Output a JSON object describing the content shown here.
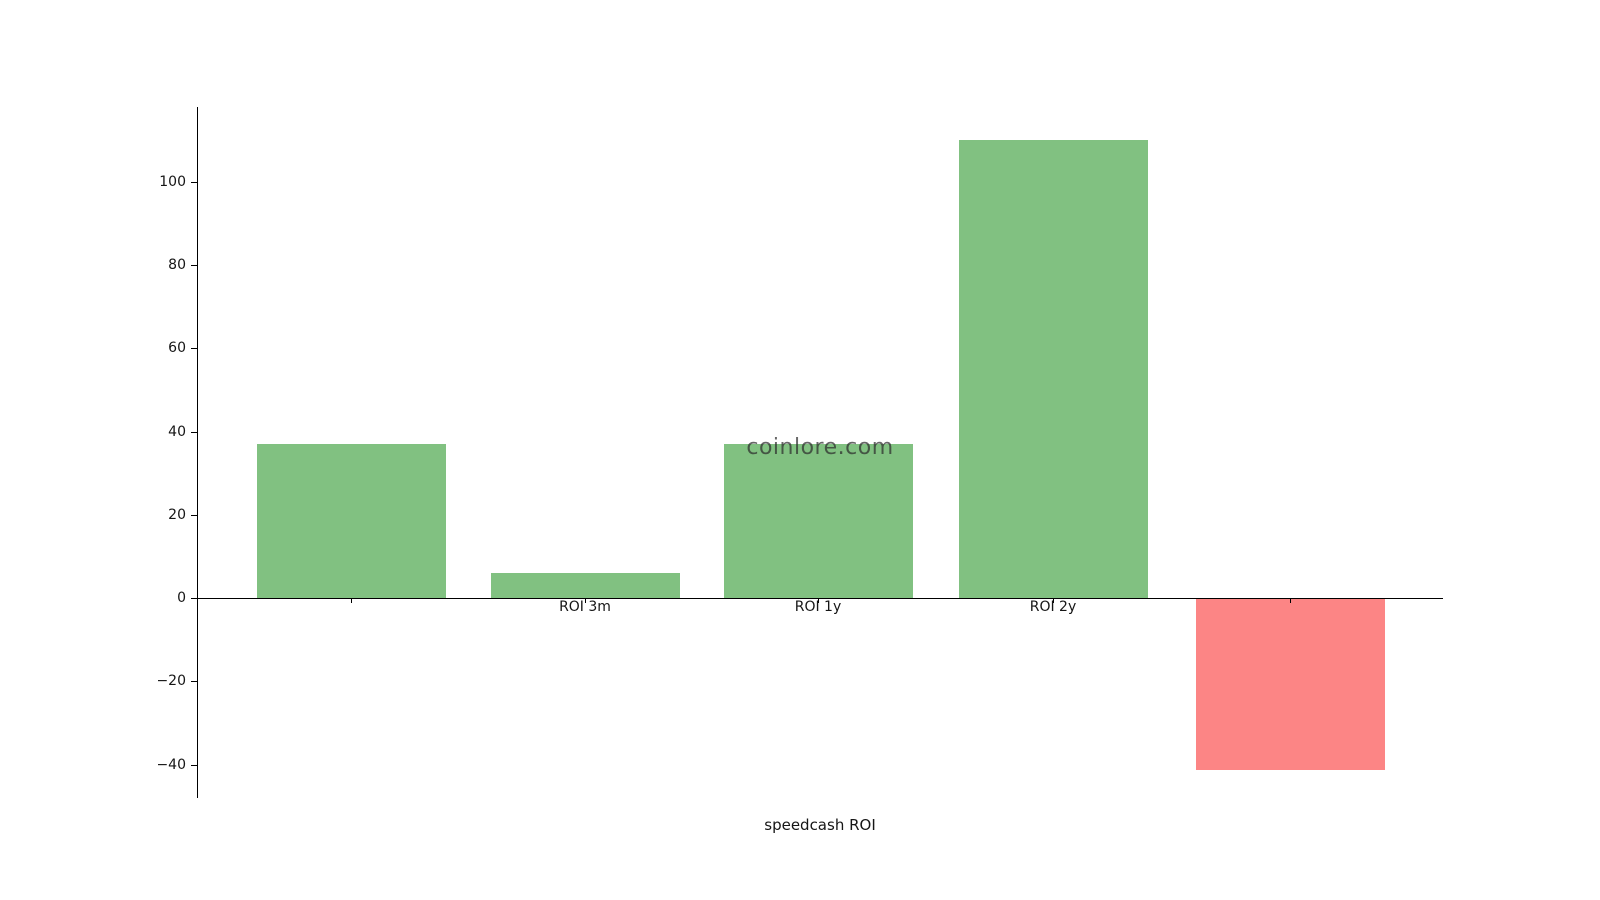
{
  "page": {
    "background": "#ffffff"
  },
  "watermark": {
    "text": "coinlore.com"
  },
  "chart_data": {
    "type": "bar",
    "title": "speedcash ROI",
    "title_position": "bottom-center",
    "categories": [
      "",
      "ROI 3m",
      "ROI 1y",
      "ROI 2y",
      ""
    ],
    "values": [
      37,
      6,
      37,
      110,
      -41
    ],
    "yticks": [
      100,
      80,
      60,
      40,
      20,
      0,
      -20,
      -40
    ],
    "ytick_labels": [
      "100",
      "80",
      "60",
      "40",
      "20",
      "0",
      "−20",
      "−40"
    ],
    "ylim": [
      -48,
      118
    ],
    "grid": false,
    "legend": false,
    "colors": {
      "positive_bar": "#81c181",
      "negative_bar": "#fc8585",
      "axis": "#000000",
      "tick_text": "#161616",
      "watermark_text": "rgba(45,45,45,0.72)"
    }
  }
}
